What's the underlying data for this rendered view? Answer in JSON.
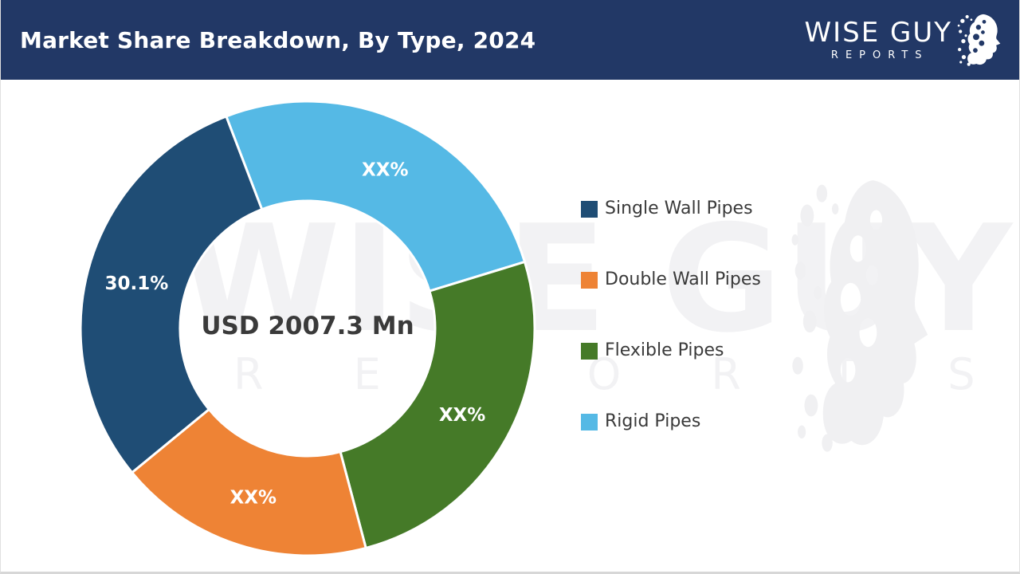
{
  "header": {
    "title": "Market Share Breakdown, By Type, 2024",
    "background_color": "#223866",
    "logo": {
      "line1": "WISE GUY",
      "line2": "REPORTS"
    }
  },
  "watermark": {
    "line1": "WISE GUY",
    "line2": "R E P O R T S"
  },
  "chart_data": {
    "type": "pie",
    "subtype": "donut",
    "title": "Market Share Breakdown, By Type, 2024",
    "center_label": "USD 2007.3 Mn",
    "rotation_deg": -21,
    "legend_position": "right",
    "series": [
      {
        "name": "Single Wall Pipes",
        "color": "#1f4d75",
        "percent": 30.1,
        "slice_label": "30.1%"
      },
      {
        "name": "Double Wall Pipes",
        "color": "#ee8335",
        "percent": 18.2,
        "slice_label": "XX%"
      },
      {
        "name": "Flexible Pipes",
        "color": "#457a28",
        "percent": 25.6,
        "slice_label": "XX%"
      },
      {
        "name": "Rigid Pipes",
        "color": "#55b9e5",
        "percent": 26.1,
        "slice_label": "XX%"
      }
    ]
  }
}
